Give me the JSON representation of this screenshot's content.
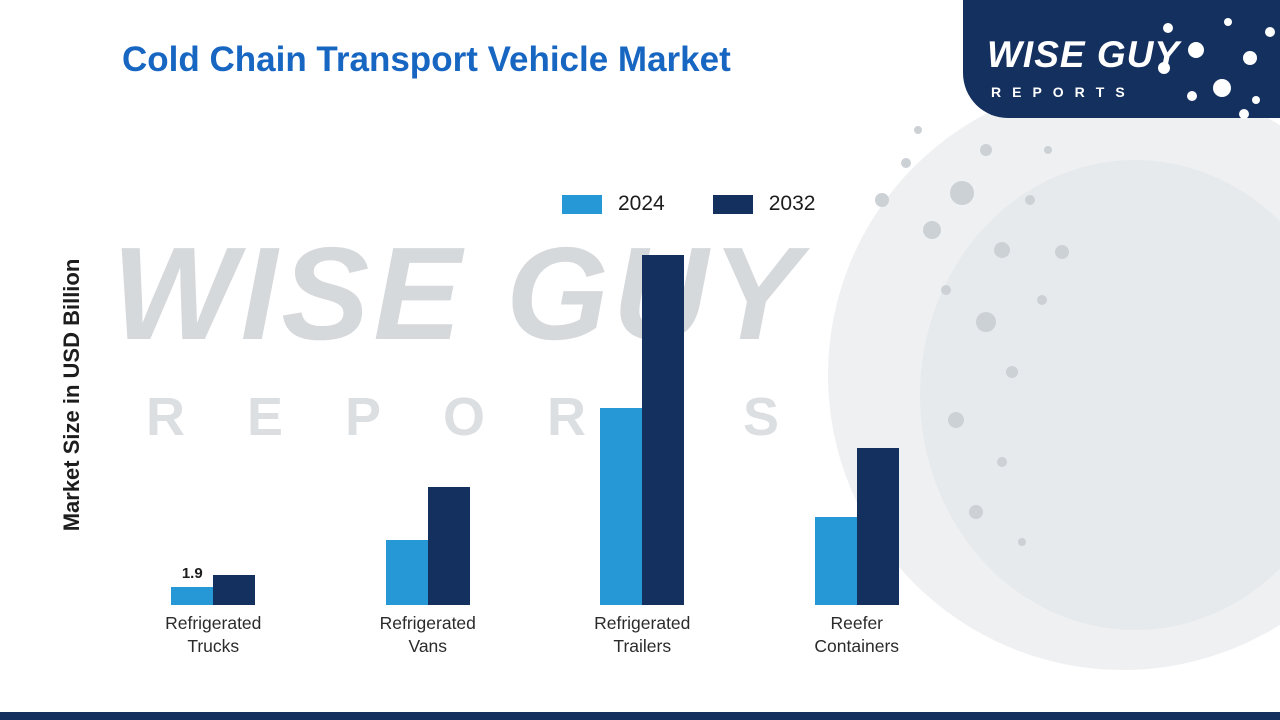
{
  "chart_data": {
    "type": "bar",
    "title": "Cold Chain Transport Vehicle Market",
    "ylabel": "Market Size in USD Billion",
    "xlabel": "",
    "categories": [
      "Refrigerated Trucks",
      "Refrigerated Vans",
      "Refrigerated Trailers",
      "Reefer Containers"
    ],
    "series": [
      {
        "name": "2024",
        "color": "#2598d5",
        "values": [
          1.9,
          6.9,
          20.8,
          9.3
        ]
      },
      {
        "name": "2032",
        "color": "#14305f",
        "values": [
          3.2,
          12.4,
          36.9,
          16.5
        ]
      }
    ],
    "value_labels": [
      {
        "series": "2024",
        "category": "Refrigerated Trucks",
        "text": "1.9"
      }
    ],
    "ylim": [
      0,
      40
    ],
    "grid": false,
    "legend_position": "top"
  },
  "logo": {
    "line1": "WISE GUY",
    "line2": "REPORTS"
  },
  "watermark": {
    "line1": "WISE GUY",
    "line2": "REPORTS"
  },
  "colors": {
    "title_blue": "#1766c2",
    "bar_light_blue": "#2598d5",
    "bar_navy": "#14305f",
    "bottom_bar_navy": "#14305f",
    "watermark_gray": "#d6d9dc"
  }
}
